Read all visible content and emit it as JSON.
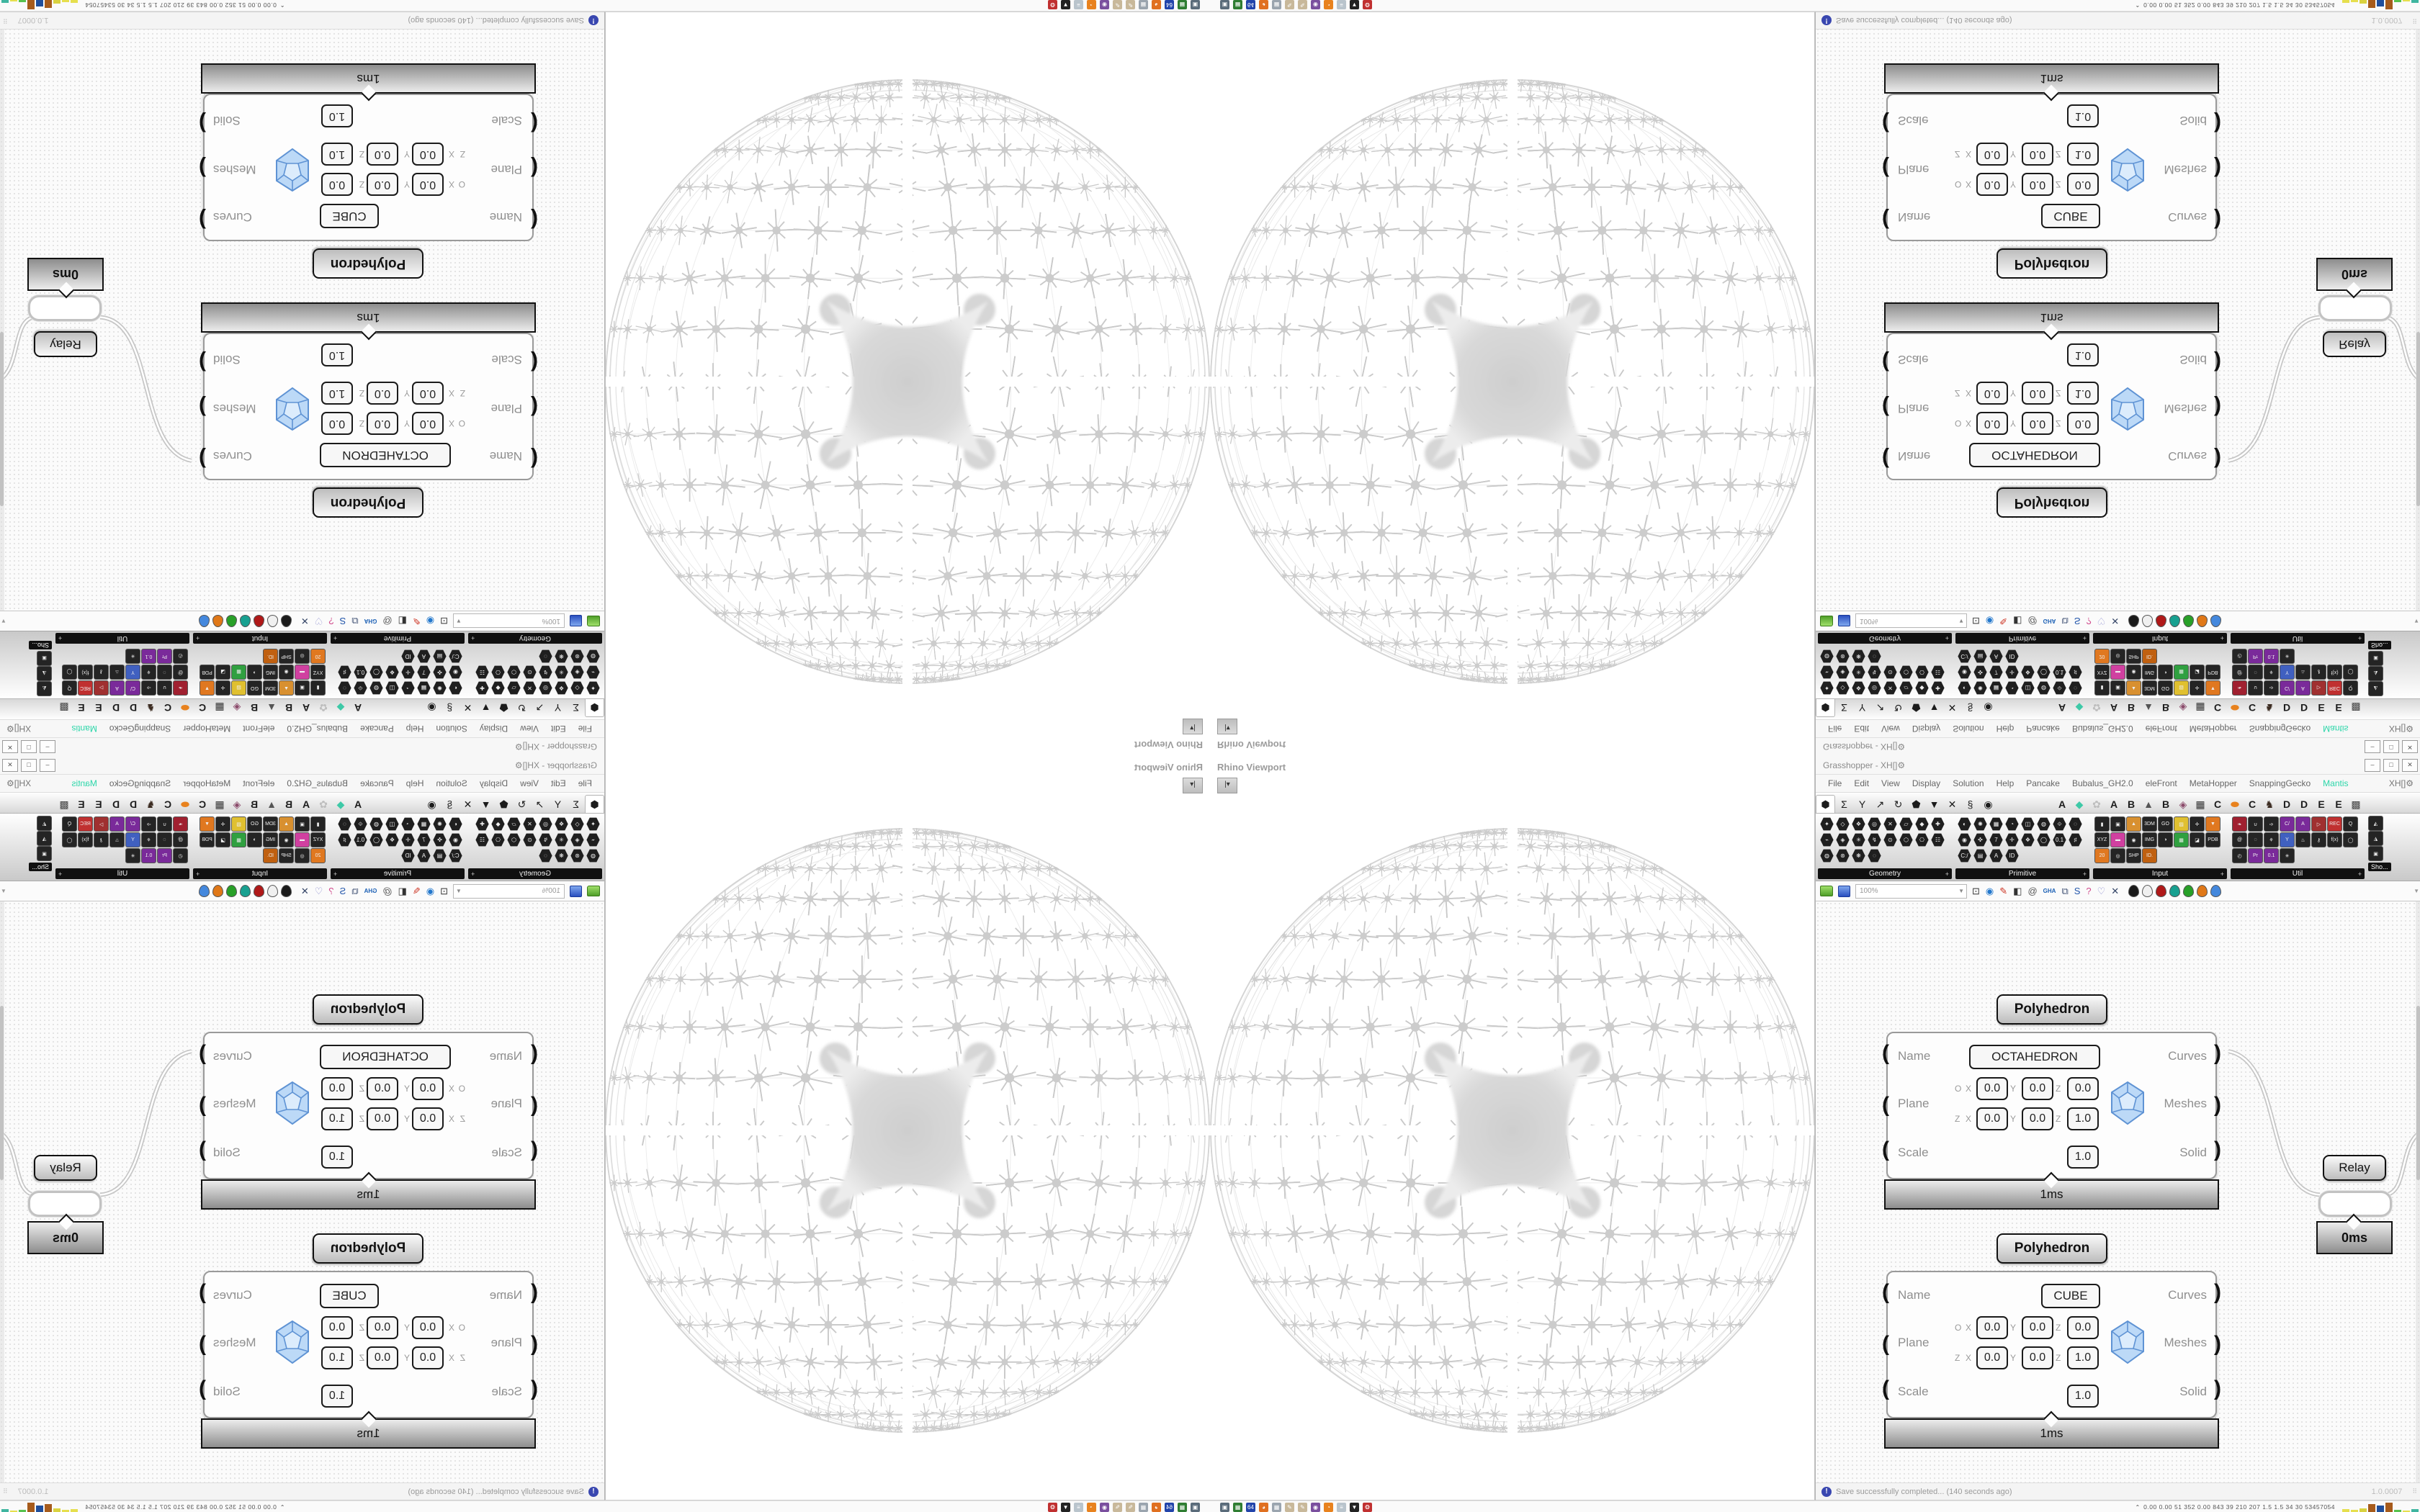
{
  "window": {
    "title": "Grasshopper - XH[]⚙",
    "buttons": [
      "–",
      "□",
      "✕"
    ]
  },
  "menu": {
    "items": [
      "File",
      "Edit",
      "View",
      "Display",
      "Solution",
      "Help",
      "Pancake",
      "Bubalus_GH2.0",
      "eleFront",
      "MetaHopper",
      "SnappingGecko",
      "Mantis"
    ],
    "highlight": "Mantis",
    "highlight_color": "#2bd6a9",
    "right": "XH[]⚙"
  },
  "tabs": {
    "icon_tabs": [
      "⬢",
      "Σ",
      "Y",
      "↗",
      "↻",
      "⬟",
      "▼",
      "✕",
      "§",
      "◉"
    ],
    "icon_tab_names": [
      "params",
      "maths",
      "sets",
      "vector",
      "curve",
      "surface",
      "mesh",
      "intersect",
      "transform",
      "display"
    ],
    "plugin_tabs": [
      {
        "t": "A"
      },
      {
        "g": "◆",
        "c": "#3ec9a7"
      },
      {
        "g": "✿",
        "c": "#bdbdbd"
      },
      {
        "t": "A"
      },
      {
        "t": "B"
      },
      {
        "g": "▲",
        "c": "#555555"
      },
      {
        "t": "B"
      },
      {
        "g": "◈",
        "c": "#8a4a6a"
      },
      {
        "g": "▦",
        "c": "#333333"
      },
      {
        "t": "C"
      },
      {
        "g": "⬬",
        "c": "#e8821e"
      },
      {
        "t": "C"
      },
      {
        "g": "♞",
        "c": "#3a2a20"
      },
      {
        "t": "D"
      },
      {
        "t": "D"
      },
      {
        "t": "E"
      },
      {
        "t": "E"
      },
      {
        "g": "▩",
        "c": "#444444"
      }
    ]
  },
  "palette": {
    "plus": "+",
    "more_label": "Sho...",
    "panels": [
      {
        "name": "Geometry",
        "tiles": [
          "✦",
          "◇",
          "❖",
          "◎",
          "✕",
          "▱",
          "◆",
          "✚",
          "⌁",
          "◈",
          "✳",
          "↯",
          "⊙",
          "⬡",
          "⎔",
          "☷",
          "◍",
          "⊛",
          "❋",
          "◌"
        ]
      },
      {
        "name": "Primitive",
        "tiles": [
          "◐",
          "✺",
          "▦",
          "◔",
          "◫",
          "◍",
          "⟐",
          "◌",
          "◉",
          "✜",
          "7",
          "✛",
          "❖",
          "◯",
          "0.1",
          "♯",
          "C:/",
          "▤",
          "A",
          "ID"
        ]
      },
      {
        "name": "Input",
        "tiles": [
          {
            "sq": "▮"
          },
          {
            "sq": "▣"
          },
          {
            "sq": "▲",
            "c": "#d89030"
          },
          {
            "sq": "3DM"
          },
          {
            "sq": "GO"
          },
          {
            "sq": "▨",
            "c": "#e0c030"
          },
          {
            "sq": "✛"
          },
          {
            "sq": "▼",
            "c": "#e07820"
          },
          {
            "sq": "XYZ"
          },
          {
            "sq": "▬",
            "c": "#d040a0"
          },
          {
            "sq": "◉"
          },
          {
            "sq": "IMG"
          },
          {
            "sq": "◑"
          },
          {
            "sq": "▦",
            "c": "#30a040"
          },
          {
            "sq": "◪"
          },
          {
            "sq": "PDB"
          },
          {
            "sq": "20",
            "c": "#e07820"
          },
          {
            "sq": "◎"
          },
          {
            "sq": "SHP"
          },
          {
            "sq": "ID.",
            "c": "#c06010"
          }
        ]
      },
      {
        "name": "Util",
        "tiles": [
          {
            "sq": "❧",
            "c": "#a02030"
          },
          {
            "sq": "∪"
          },
          {
            "sq": "➩"
          },
          {
            "sq": "C/",
            "c": "#7a2a9a"
          },
          {
            "sq": "A",
            "c": "#7a2a9a"
          },
          {
            "sq": "▷",
            "c": "#a03030"
          },
          {
            "sq": "REC",
            "c": "#c03030"
          },
          {
            "sq": "Q"
          },
          {
            "sq": "@"
          },
          {
            "sq": "◌"
          },
          {
            "sq": "⚘"
          },
          {
            "sq": "Y",
            "c": "#4060c0"
          },
          {
            "sq": "♨"
          },
          {
            "sq": "⚷"
          },
          {
            "sq": "f(x)"
          },
          {
            "sq": "◯"
          },
          {
            "sq": "◴"
          },
          {
            "sq": "Pr",
            "c": "#7a2a9a"
          },
          {
            "sq": "0.1",
            "c": "#7a2a9a"
          },
          {
            "sq": "✳"
          }
        ]
      }
    ],
    "mini_tiles": [
      "◭",
      "◮",
      "▣"
    ]
  },
  "toolbar": {
    "zoom_value": "100%",
    "icons": [
      {
        "name": "zoom-extents-icon",
        "g": "⊡",
        "c": "#333333"
      },
      {
        "name": "preview-eye-icon",
        "g": "◉",
        "c": "#2277cc"
      },
      {
        "name": "sketch-pen-icon",
        "g": "✎",
        "c": "#cc3322"
      },
      {
        "name": "camera-icon",
        "g": "◧",
        "c": "#333333"
      },
      {
        "name": "internalise-icon",
        "g": "@",
        "c": "#555555"
      },
      {
        "name": "gha-recompile-icon",
        "g": "GHA",
        "c": "#1a5fb4"
      },
      {
        "name": "edit-window-icon",
        "g": "⧉",
        "c": "#445577"
      },
      {
        "name": "finder-icon",
        "g": "S",
        "c": "#2255aa"
      },
      {
        "name": "package-icon",
        "g": "?",
        "c": "#d04a8c"
      },
      {
        "name": "bulb-icon",
        "g": "♡",
        "c": "#8888cc"
      },
      {
        "name": "ribbon-icon",
        "g": "✕",
        "c": "#334466"
      }
    ],
    "balloons": [
      "#1a1a1a",
      "#f0f0f0",
      "#b01818",
      "#18a090",
      "#28a028",
      "#e07818",
      "#4488dd"
    ]
  },
  "viewport": {
    "title": "Rhino Viewport",
    "drop_glyph": "|▾"
  },
  "canvas": {
    "axes": [
      "X",
      "Y",
      "Z"
    ],
    "components": [
      {
        "label": "Polyhedron",
        "name_value": "OCTAHEDRON",
        "inputs": [
          "Name",
          "Plane",
          "Scale"
        ],
        "outputs": [
          "Curves",
          "Meshes",
          "Solid"
        ],
        "plane_rows": [
          {
            "k": "O",
            "x": "0.0",
            "y": "0.0",
            "z": "0.0"
          },
          {
            "k": "Z",
            "x": "0.0",
            "y": "0.0",
            "z": "1.0"
          }
        ],
        "scale_value": "1.0",
        "time": "1ms"
      },
      {
        "label": "Polyhedron",
        "name_value": "CUBE",
        "inputs": [
          "Name",
          "Plane",
          "Scale"
        ],
        "outputs": [
          "Curves",
          "Meshes",
          "Solid"
        ],
        "plane_rows": [
          {
            "k": "O",
            "x": "0.0",
            "y": "0.0",
            "z": "0.0"
          },
          {
            "k": "Z",
            "x": "0.0",
            "y": "0.0",
            "z": "1.0"
          }
        ],
        "scale_value": "1.0",
        "time": "1ms"
      }
    ],
    "relay": {
      "label": "Relay",
      "time": "0ms"
    }
  },
  "statusbar": {
    "icon_glyph": "!",
    "message": "Save successfully completed... (140 seconds ago)",
    "version": "1.0.0007",
    "grip": "⠿"
  },
  "taskbar": {
    "expand_glyph": "⌃",
    "monitor_values": "0.00 0.00  51  352 0.00 843  39  210  207  1.5  1.5  34  30  53457054",
    "icons": [
      {
        "name": "taskbar-icon-monitor",
        "bg": "#5a6b7a",
        "g": "▣"
      },
      {
        "name": "taskbar-icon-device",
        "bg": "#2f7d32",
        "g": "▦"
      },
      {
        "name": "taskbar-icon-floppy64",
        "bg": "#2244aa",
        "g": "64"
      },
      {
        "name": "taskbar-icon-firefox",
        "bg": "#e07020",
        "g": "◕"
      },
      {
        "name": "taskbar-icon-calculator",
        "bg": "#9aa4ae",
        "g": "▦"
      },
      {
        "name": "taskbar-icon-paint1",
        "bg": "#c8b89a",
        "g": "✎"
      },
      {
        "name": "taskbar-icon-paint2",
        "bg": "#c8b89a",
        "g": "✎"
      },
      {
        "name": "taskbar-icon-gimp",
        "bg": "#7a4f9e",
        "g": "◉"
      },
      {
        "name": "taskbar-icon-blender",
        "bg": "#e8821e",
        "g": "◔"
      },
      {
        "name": "taskbar-icon-notes",
        "bg": "#b9c4cc",
        "g": "≡"
      },
      {
        "name": "taskbar-icon-inkscape",
        "bg": "#222222",
        "g": "▼"
      },
      {
        "name": "taskbar-icon-rosette",
        "bg": "#c03030",
        "g": "❂"
      }
    ],
    "bars": [
      {
        "c": "#e6df4e",
        "h": 4
      },
      {
        "c": "#e6df4e",
        "h": 3
      },
      {
        "c": "#d9d23f",
        "h": 5
      },
      {
        "c": "#a65b1c",
        "h": 11
      },
      {
        "c": "#1f4e9c",
        "h": 9
      },
      {
        "c": "#a65b1c",
        "h": 13
      },
      {
        "c": "#57c24e",
        "h": 3
      },
      {
        "c": "#e6df4e",
        "h": 2
      },
      {
        "c": "#3fb5a0",
        "h": 4
      }
    ]
  }
}
